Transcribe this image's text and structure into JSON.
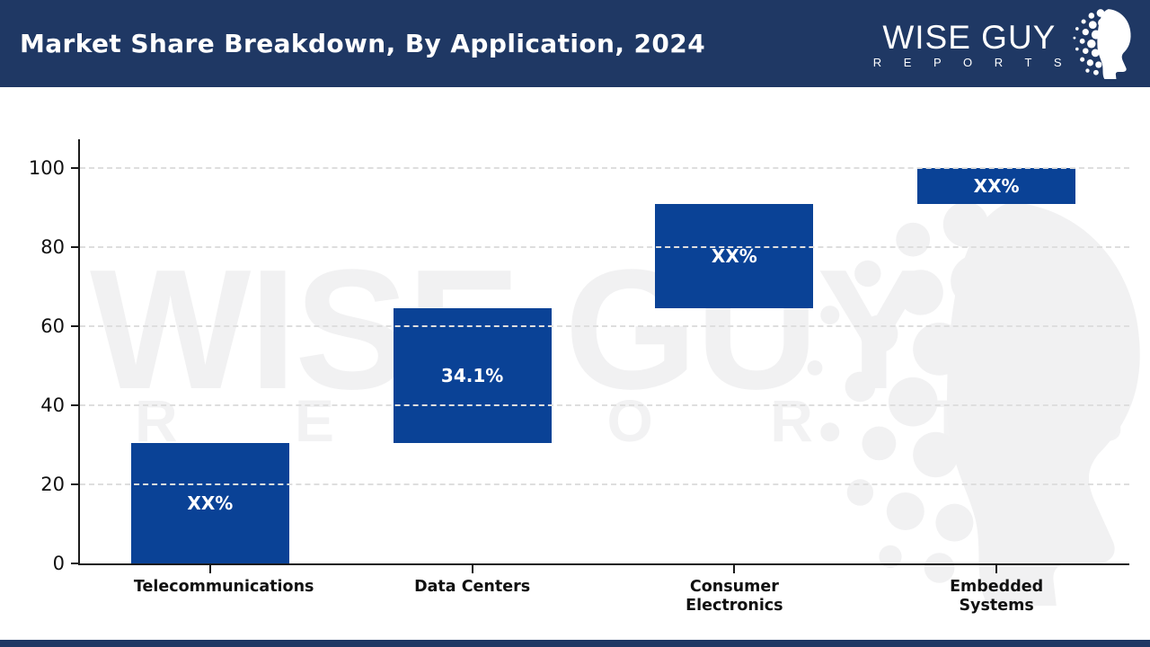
{
  "header": {
    "title": "Market Share Breakdown, By Application, 2024",
    "logo": {
      "primary": "WISE GUY",
      "secondary": "R E P O R T S"
    }
  },
  "watermark": {
    "primary": "WISE GUY",
    "secondary": "R E P O R T S"
  },
  "chart_data": {
    "type": "bar",
    "subtype": "floating-segment-waterfall",
    "title": "Market Share Breakdown, By Application, 2024",
    "categories": [
      "Telecommunications",
      "Data Centers",
      "Consumer Electronics",
      "Embedded Systems"
    ],
    "segments": [
      {
        "category": "Telecommunications",
        "start": 0,
        "end": 30.4,
        "label": "XX%"
      },
      {
        "category": "Data Centers",
        "start": 30.4,
        "end": 64.5,
        "label": "34.1%"
      },
      {
        "category": "Consumer Electronics",
        "start": 64.5,
        "end": 90.9,
        "label": "XX%"
      },
      {
        "category": "Embedded Systems",
        "start": 90.9,
        "end": 100,
        "label": "XX%"
      }
    ],
    "xlabel": "",
    "ylabel": "",
    "ylim": [
      0,
      107
    ],
    "yticks": [
      0,
      20,
      40,
      60,
      80,
      100
    ],
    "grid": {
      "horizontal": true,
      "style": "dashed",
      "drawn_above_bars": true
    },
    "legend": "none",
    "bar_color": "#0a4296",
    "bar_label_color": "#ffffff",
    "axis_color": "#1a1a1a",
    "gridline_color": "#dedede",
    "plot_background": "#ffffff"
  },
  "colors": {
    "header_background": "#1f3864",
    "footer_background": "#1f3864",
    "accent_blue": "#0a4296",
    "watermark_gray": "#f1f1f2"
  }
}
